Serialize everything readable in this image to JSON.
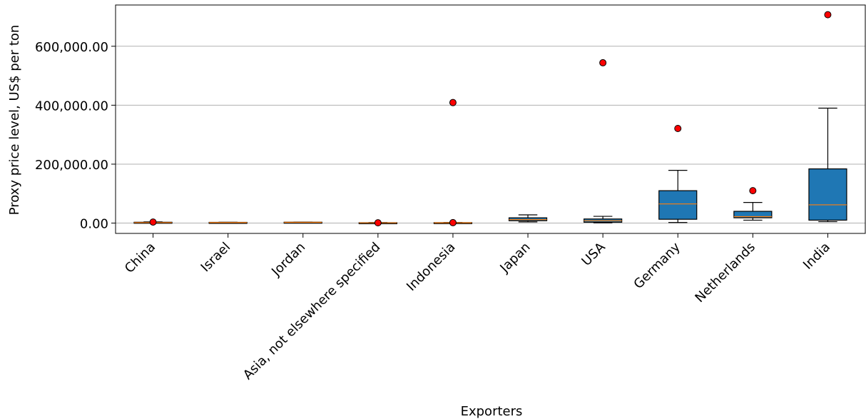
{
  "chart_data": {
    "type": "box",
    "xlabel": "Exporters",
    "ylabel": "Proxy price level, US$ per ton",
    "ylim": [
      -35000,
      740000
    ],
    "yticks": [
      0,
      200000,
      400000,
      600000
    ],
    "ytick_labels": [
      "0.00",
      "200,000.00",
      "400,000.00",
      "600,000.00"
    ],
    "grid": "horizontal",
    "box_color": "#1f77b4",
    "median_color": "#ff7f0e",
    "outlier_color": "#ff0000",
    "categories": [
      "China",
      "Israel",
      "Jordan",
      "Asia, not elsewhere specified",
      "Indonesia",
      "Japan",
      "USA",
      "Germany",
      "Netherlands",
      "India"
    ],
    "boxes": [
      {
        "whisker_low": 500,
        "q1": 1000,
        "median": 1800,
        "q3": 3000,
        "whisker_high": 4000,
        "outliers": [
          3500
        ]
      },
      {
        "whisker_low": 1200,
        "q1": 1500,
        "median": 2000,
        "q3": 2600,
        "whisker_high": 3000,
        "outliers": []
      },
      {
        "whisker_low": 1500,
        "q1": 1800,
        "median": 2500,
        "q3": 3200,
        "whisker_high": 3500,
        "outliers": []
      },
      {
        "whisker_low": 200,
        "q1": 500,
        "median": 900,
        "q3": 1500,
        "whisker_high": 2000,
        "outliers": [
          1000
        ]
      },
      {
        "whisker_low": 300,
        "q1": 600,
        "median": 1000,
        "q3": 1800,
        "whisker_high": 2200,
        "outliers": [
          409000,
          1500
        ]
      },
      {
        "whisker_low": 4000,
        "q1": 8000,
        "median": 12000,
        "q3": 18000,
        "whisker_high": 28000,
        "outliers": []
      },
      {
        "whisker_low": 1000,
        "q1": 3000,
        "median": 8000,
        "q3": 14000,
        "whisker_high": 23000,
        "outliers": [
          544000
        ]
      },
      {
        "whisker_low": 2000,
        "q1": 13000,
        "median": 65000,
        "q3": 110000,
        "whisker_high": 179000,
        "outliers": [
          321000
        ]
      },
      {
        "whisker_low": 10000,
        "q1": 18000,
        "median": 22000,
        "q3": 40000,
        "whisker_high": 70000,
        "outliers": [
          110000
        ]
      },
      {
        "whisker_low": 5000,
        "q1": 10000,
        "median": 62000,
        "q3": 184000,
        "whisker_high": 390000,
        "outliers": [
          707000
        ]
      }
    ]
  }
}
